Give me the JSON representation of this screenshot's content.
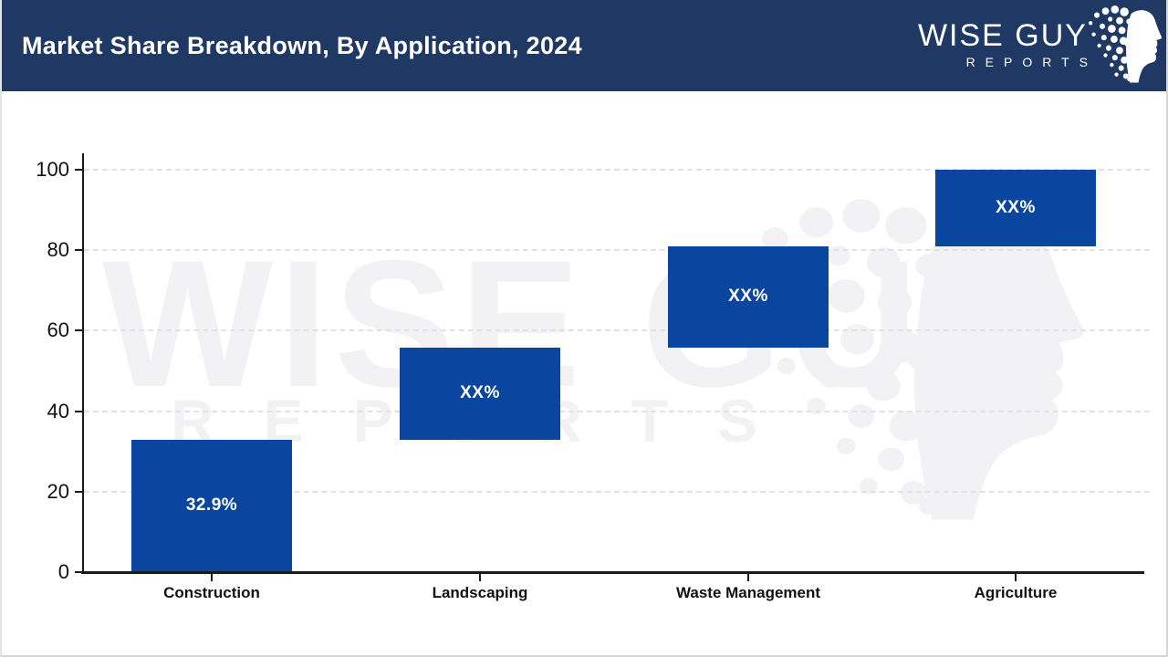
{
  "header": {
    "title": "Market Share Breakdown, By Application, 2024",
    "logo": {
      "name_line": "WISE GUY",
      "sub_line": "REPORTS"
    }
  },
  "watermark": {
    "name_line": "WISE GUY",
    "sub_line": "REPORTS"
  },
  "chart_data": {
    "type": "bar",
    "variant": "waterfall-breakdown",
    "title": "Market Share Breakdown, By Application, 2024",
    "categories": [
      "Construction",
      "Landscaping",
      "Waste Management",
      "Agriculture"
    ],
    "segments": [
      {
        "category": "Construction",
        "start": 0,
        "end": 32.9,
        "label": "32.9%"
      },
      {
        "category": "Landscaping",
        "start": 32.9,
        "end": 55.8,
        "label": "XX%"
      },
      {
        "category": "Waste Management",
        "start": 55.8,
        "end": 81.0,
        "label": "XX%"
      },
      {
        "category": "Agriculture",
        "start": 81.0,
        "end": 100,
        "label": "XX%"
      }
    ],
    "ylim": [
      0,
      100
    ],
    "yticks": [
      0,
      20,
      40,
      60,
      80,
      100
    ],
    "xlabel": "",
    "ylabel": "",
    "grid": "horizontal-dashed",
    "legend": "none",
    "bar_color": "#0a45a0",
    "bar_label_color": "#ffffff"
  },
  "colors": {
    "header_bg": "#1f3864",
    "bar": "#0a45a0",
    "axis": "#1a1a1a",
    "grid": "#e2e2e2",
    "watermark": "#f2f2f4",
    "title_text": "#ffffff"
  }
}
